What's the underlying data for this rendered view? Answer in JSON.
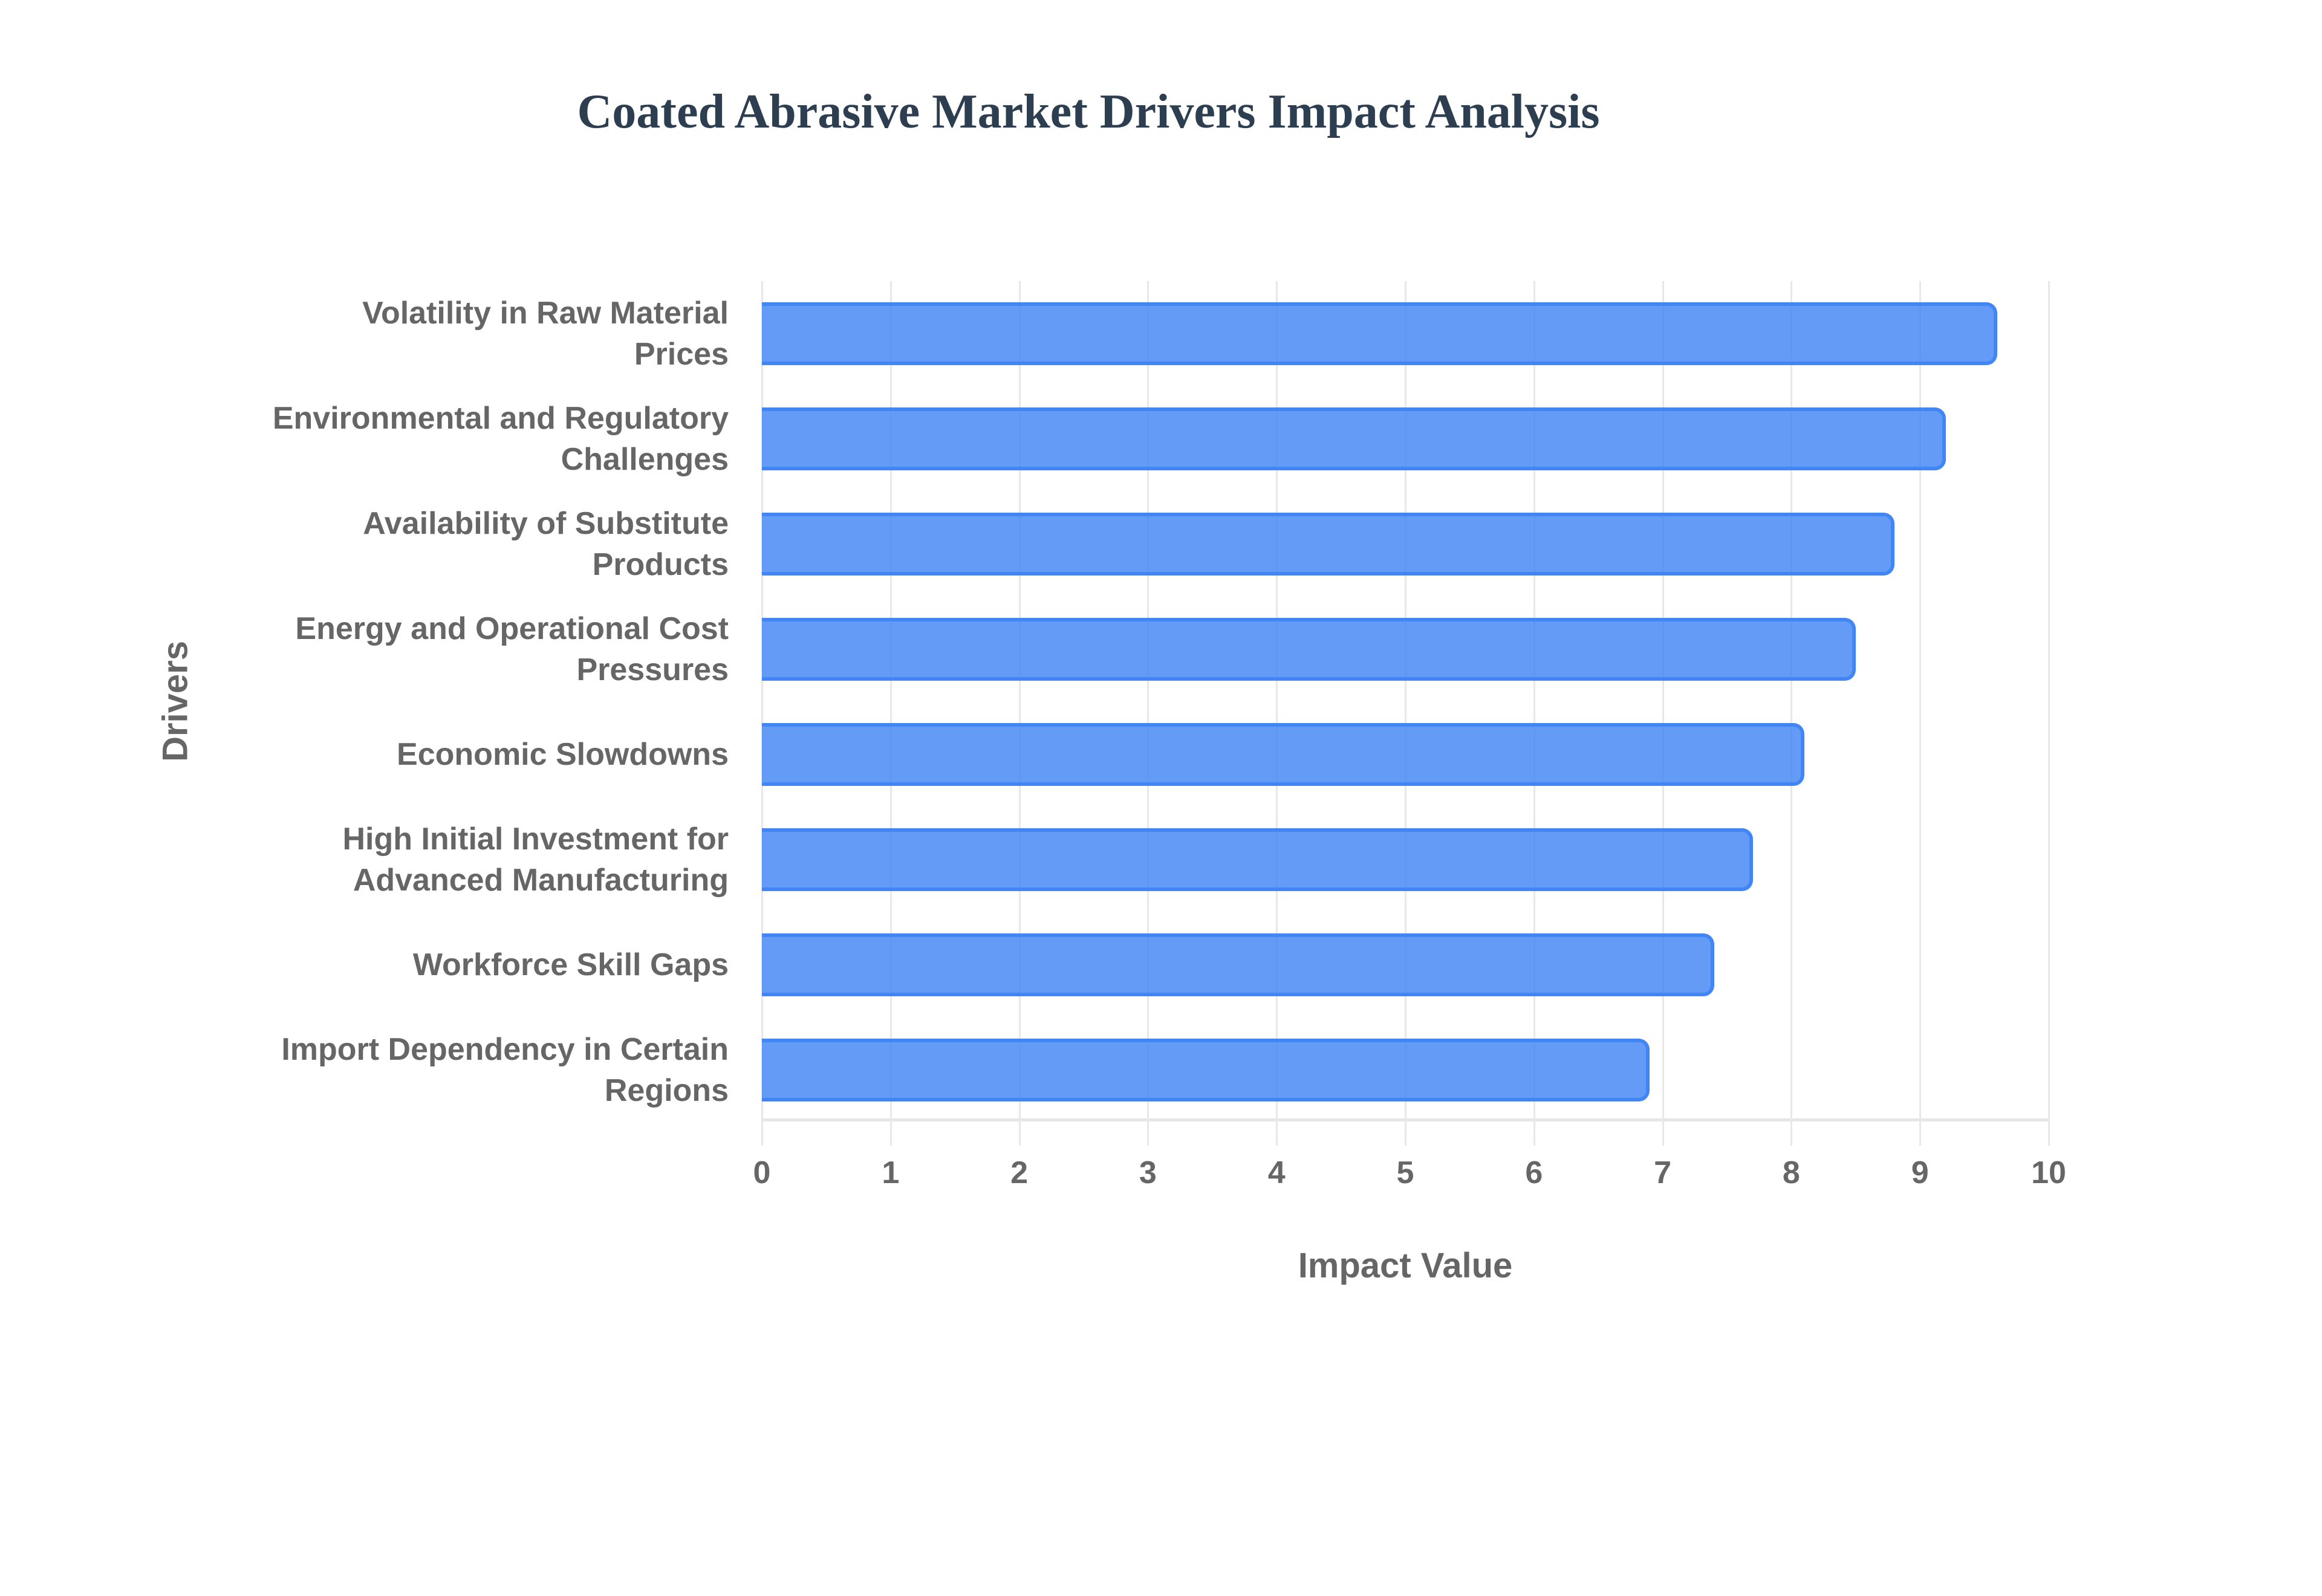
{
  "chart_data": {
    "type": "bar",
    "orientation": "horizontal",
    "title": "Coated Abrasive Market Drivers Impact Analysis",
    "xlabel": "Impact Value",
    "ylabel": "Drivers",
    "xlim": [
      0,
      10
    ],
    "x_ticks": [
      "0",
      "1",
      "2",
      "3",
      "4",
      "5",
      "6",
      "7",
      "8",
      "9",
      "10"
    ],
    "grid": true,
    "categories": [
      "Volatility in Raw Material Prices",
      "Environmental and Regulatory Challenges",
      "Availability of Substitute Products",
      "Energy and Operational Cost Pressures",
      "Economic Slowdowns",
      "High Initial Investment for Advanced Manufacturing",
      "Workforce Skill Gaps",
      "Import Dependency in Certain Regions"
    ],
    "category_display": [
      [
        "Volatility in Raw Material",
        "Prices"
      ],
      [
        "Environmental and Regulatory",
        "Challenges"
      ],
      [
        "Availability of Substitute",
        "Products"
      ],
      [
        "Energy and Operational Cost",
        "Pressures"
      ],
      [
        "Economic Slowdowns"
      ],
      [
        "High Initial Investment for",
        "Advanced Manufacturing"
      ],
      [
        "Workforce Skill Gaps"
      ],
      [
        "Import Dependency in Certain",
        "Regions"
      ]
    ],
    "values": [
      9.6,
      9.2,
      8.8,
      8.5,
      8.1,
      7.7,
      7.4,
      6.9
    ],
    "colors": {
      "bar_fill": "#6199f4",
      "bar_border": "#4285f4",
      "title": "#2c3e50",
      "text": "#666666",
      "grid": "#e8e8e8"
    }
  }
}
